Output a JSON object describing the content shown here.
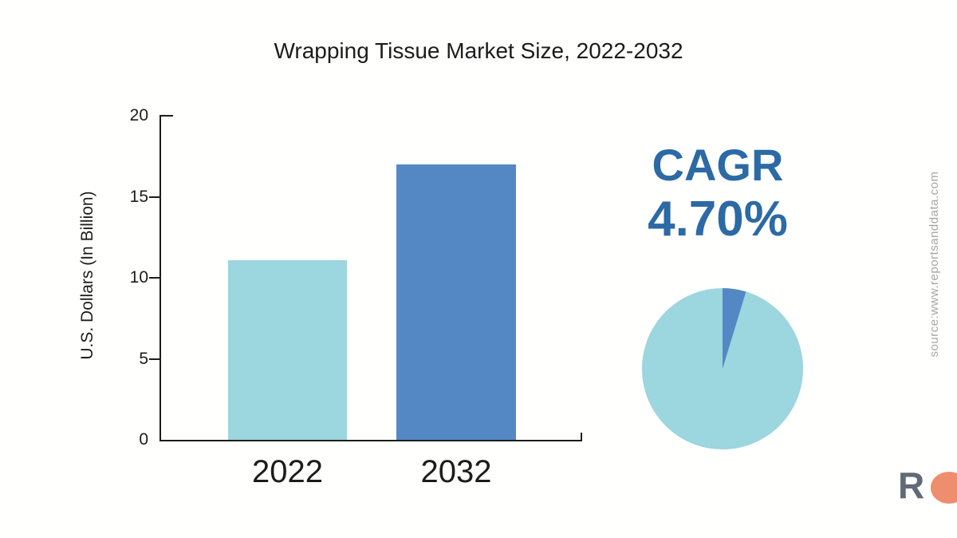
{
  "title": "Wrapping Tissue Market Size, 2022-2032",
  "chart_data": [
    {
      "type": "bar",
      "title": "Wrapping Tissue Market Size, 2022-2032",
      "categories": [
        "2022",
        "2032"
      ],
      "values": [
        11.1,
        17.0
      ],
      "colors": [
        "#9cd6df",
        "#5488c5"
      ],
      "xlabel": "",
      "ylabel": "U.S. Dollars (In Billion)",
      "ylim": [
        0,
        20
      ],
      "yticks": [
        0,
        5,
        10,
        15,
        20
      ],
      "grid": false,
      "legend": false
    },
    {
      "type": "pie",
      "title": "CAGR 4.70%",
      "labels": [
        "CAGR share",
        "remainder"
      ],
      "values": [
        4.7,
        95.3
      ],
      "colors": [
        "#5488c5",
        "#9cd6df"
      ],
      "start_angle_deg": 90,
      "direction": "clockwise",
      "legend": false
    }
  ],
  "cagr": {
    "label": "CAGR",
    "value": "4.70%",
    "value_percent": 4.7,
    "color": "#2b6aa5"
  },
  "source": {
    "text": "source:www.reportsanddata.com"
  },
  "logo": {
    "letter": "R",
    "accent_color": "#ee8e6e",
    "letter_color": "#5f6b76"
  }
}
